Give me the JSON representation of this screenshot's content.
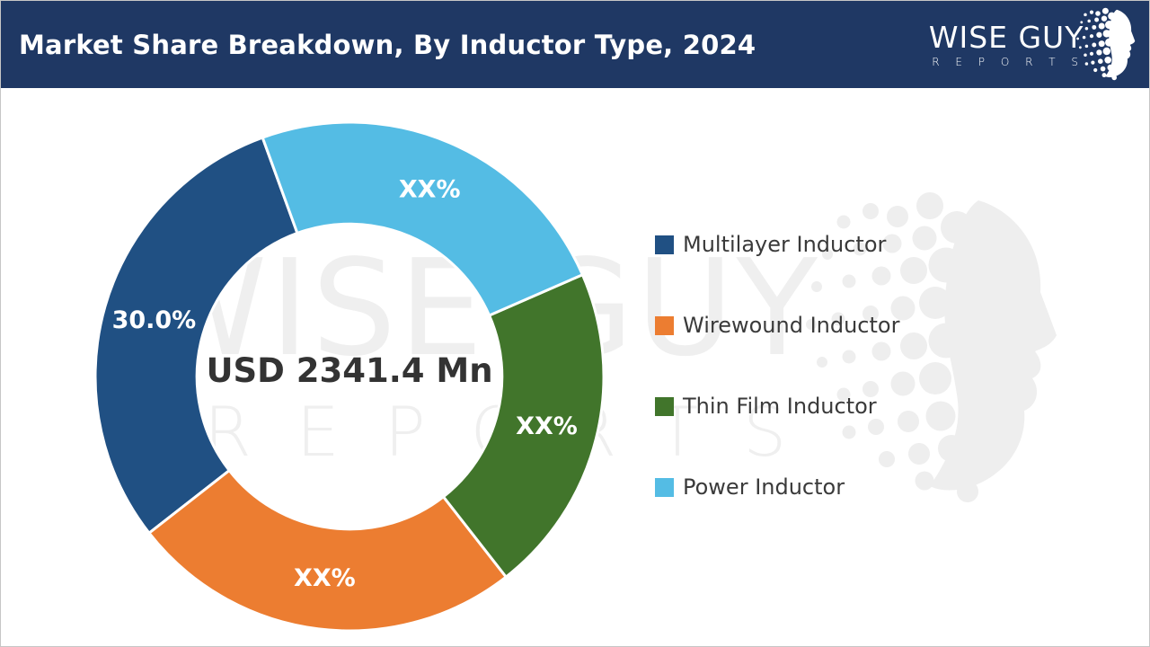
{
  "header": {
    "title": "Market Share Breakdown, By Inductor Type, 2024",
    "bg_color": "#1F3864",
    "logo": {
      "line1": "WISE GUY",
      "line2": "R E P O R T S"
    }
  },
  "watermark": {
    "line1": "WISE GUY",
    "line2": "REPORTS"
  },
  "chart_data": {
    "type": "pie",
    "subtype": "donut",
    "title": "Market Share Breakdown, By Inductor Type, 2024",
    "center_label": "USD 2341.4 Mn",
    "categories": [
      "Multilayer Inductor",
      "Wirewound Inductor",
      "Thin Film Inductor",
      "Power Inductor"
    ],
    "values": [
      30,
      25,
      21,
      24
    ],
    "slice_labels": [
      "30.0%",
      "XX%",
      "XX%",
      "XX%"
    ],
    "colors": [
      "#205083",
      "#EC7D31",
      "#41752B",
      "#54BCE4"
    ],
    "start_angle_deg": 110,
    "direction": "counterclockwise",
    "donut_hole_ratio": 0.6,
    "legend_position": "right",
    "separator_color": "#FFFFFF",
    "label_color": "#FFFFFF",
    "center_label_color": "#333333"
  },
  "legend": {
    "items": [
      {
        "label": "Multilayer Inductor",
        "color": "#205083"
      },
      {
        "label": "Wirewound Inductor",
        "color": "#EC7D31"
      },
      {
        "label": "Thin Film Inductor",
        "color": "#41752B"
      },
      {
        "label": "Power Inductor",
        "color": "#54BCE4"
      }
    ]
  }
}
